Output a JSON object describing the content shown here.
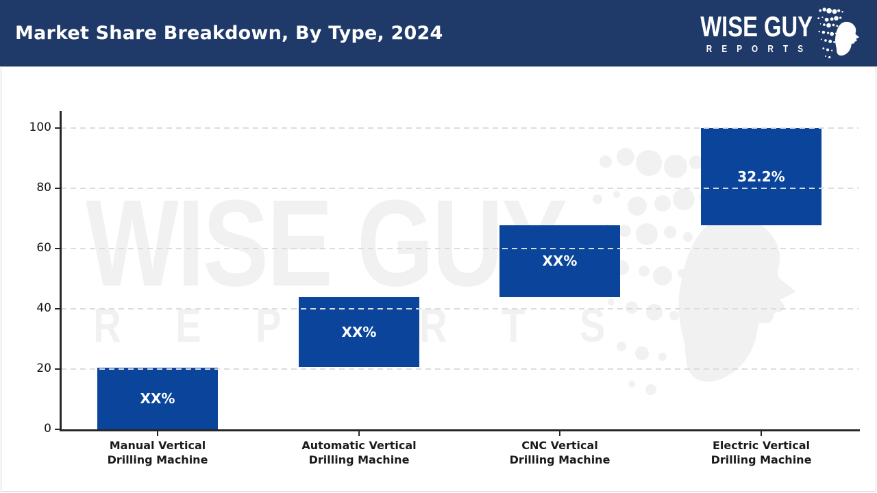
{
  "header": {
    "title": "Market Share Breakdown, By Type, 2024",
    "logo_line1": "WISE GUY",
    "logo_line2": "R E P O R T S"
  },
  "watermark": {
    "line1": "WISE GUY",
    "line2": "R E P O R T S"
  },
  "colors": {
    "header_bg": "#1f3a68",
    "bar_fill": "#0a449b",
    "bar_label_text": "#ffffff",
    "axis_line": "#262626",
    "gridline": "#dcdcdc",
    "tick_text": "#111111",
    "watermark_gray": "#f1f1f1",
    "panel_border": "#d6d6d6"
  },
  "chart_data": {
    "type": "bar",
    "subtype": "floating-waterfall",
    "title": "Market Share Breakdown, By Type, 2024",
    "xlabel": "",
    "ylabel": "",
    "ylim": [
      0,
      100
    ],
    "yticks": [
      0,
      20,
      40,
      60,
      80,
      100
    ],
    "grid": "horizontal-dashed",
    "legend": "none",
    "bars": [
      {
        "category_line1": "Manual Vertical",
        "category_line2": "Drilling Machine",
        "start": 0,
        "end": 20.5,
        "label": "XX%"
      },
      {
        "category_line1": "Automatic Vertical",
        "category_line2": "Drilling Machine",
        "start": 20.7,
        "end": 43.9,
        "label": "XX%"
      },
      {
        "category_line1": "CNC Vertical",
        "category_line2": "Drilling Machine",
        "start": 43.9,
        "end": 67.8,
        "label": "XX%"
      },
      {
        "category_line1": "Electric Vertical",
        "category_line2": "Drilling Machine",
        "start": 67.8,
        "end": 100,
        "label": "32.2%",
        "value": 32.2
      }
    ]
  }
}
